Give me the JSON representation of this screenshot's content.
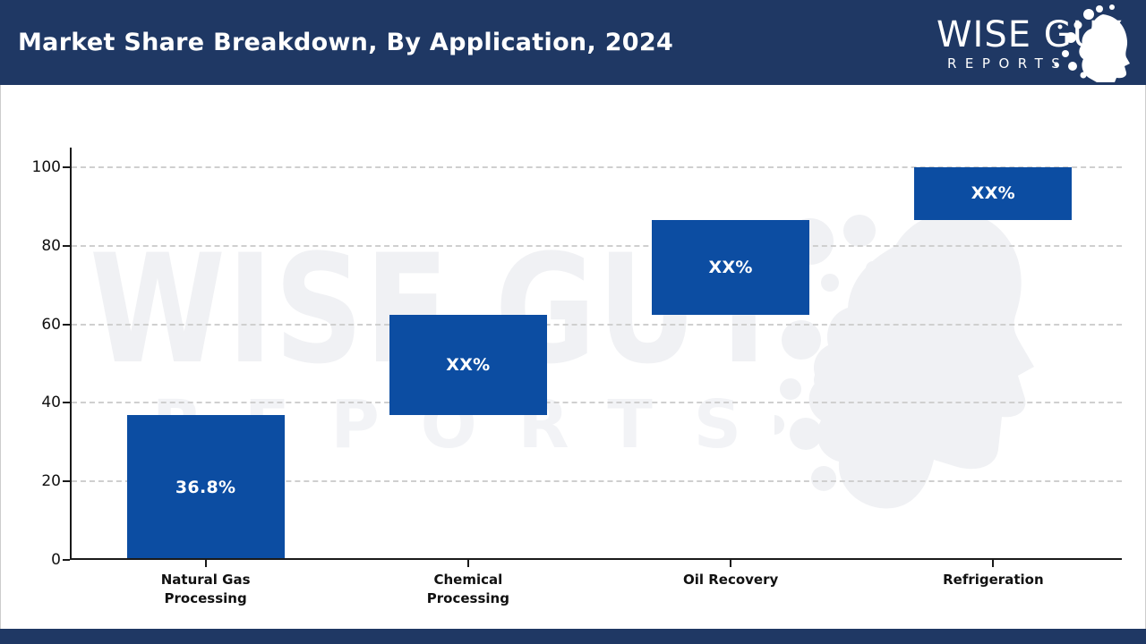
{
  "header": {
    "title": "Market Share Breakdown, By Application, 2024"
  },
  "logo": {
    "line1": "WISE GUY",
    "line2": "REPORTS"
  },
  "watermark": {
    "line1": "WISE GUY",
    "line2": "REPORTS"
  },
  "colors": {
    "header_bg": "#1f3864",
    "footer_bg": "#1f3864",
    "bar": "#0c4da2",
    "grid": "#cfcfcf",
    "axis": "#1a1a1a",
    "tick_text": "#111111",
    "bar_label_text": "#ffffff",
    "watermark": "#f0f1f4"
  },
  "chart_data": {
    "type": "bar",
    "subtype": "waterfall",
    "title": "Market Share Breakdown, By Application, 2024",
    "categories": [
      "Natural Gas\nProcessing",
      "Chemical\nProcessing",
      "Oil Recovery",
      "Refrigeration"
    ],
    "segments": [
      {
        "category": "Natural Gas Processing",
        "start": 0,
        "end": 36.8,
        "label": "36.8%"
      },
      {
        "category": "Chemical Processing",
        "start": 36.8,
        "end": 62.5,
        "label": "XX%"
      },
      {
        "category": "Oil Recovery",
        "start": 62.5,
        "end": 86.6,
        "label": "XX%"
      },
      {
        "category": "Refrigeration",
        "start": 86.6,
        "end": 100,
        "label": "XX%"
      }
    ],
    "xlabel": "",
    "ylabel": "",
    "ylim": [
      0,
      100
    ],
    "yticks": [
      0,
      20,
      40,
      60,
      80,
      100
    ],
    "grid": "horizontal-dashed",
    "legend": "none",
    "bar_color": "#0c4da2"
  }
}
